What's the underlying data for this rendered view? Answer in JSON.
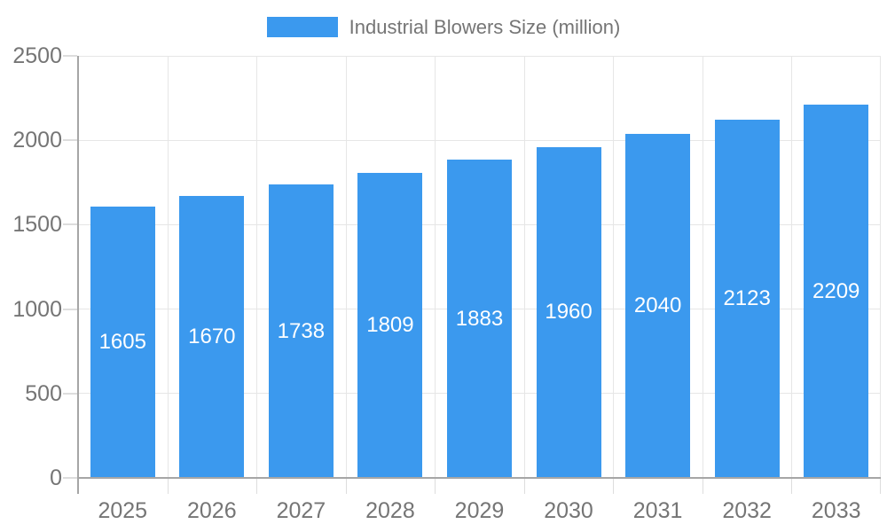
{
  "legend": {
    "label": "Industrial Blowers Size (million)"
  },
  "chart_data": {
    "type": "bar",
    "title": "Industrial Blowers Size (million)",
    "categories": [
      "2025",
      "2026",
      "2027",
      "2028",
      "2029",
      "2030",
      "2031",
      "2032",
      "2033"
    ],
    "values": [
      1605,
      1670,
      1738,
      1809,
      1883,
      1960,
      2040,
      2123,
      2209
    ],
    "xlabel": "",
    "ylabel": "",
    "ylim": [
      0,
      2500
    ],
    "y_ticks": [
      0,
      500,
      1000,
      1500,
      2000,
      2500
    ],
    "grid": true,
    "legend_position": "top",
    "value_label_position": "inside-center",
    "colors": {
      "bar": "#3b99ee",
      "grid_line": "#e6e6e6",
      "axis_line": "#a6a6a6",
      "tick_mark": "#dddddd",
      "tick_text": "#757575",
      "value_text": "#ffffff",
      "background": "#ffffff"
    }
  }
}
